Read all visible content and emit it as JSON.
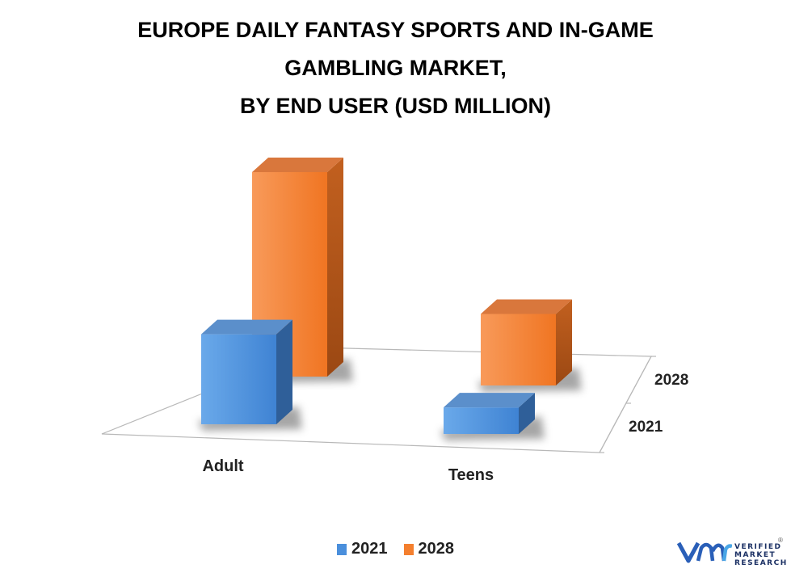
{
  "title_lines": [
    "EUROPE DAILY FANTASY SPORTS AND IN-GAME",
    "GAMBLING MARKET,",
    "BY END USER (USD MILLION)"
  ],
  "colors": {
    "2021": "#4a8fdc",
    "2028": "#f47f2e"
  },
  "chart_data": {
    "type": "bar",
    "title": "EUROPE DAILY FANTASY SPORTS AND IN-GAME GAMBLING MARKET, BY END USER (USD MILLION)",
    "categories": [
      "Adult",
      "Teens"
    ],
    "depth_labels": [
      "2028",
      "2021"
    ],
    "series": [
      {
        "name": "2021",
        "values": [
          44,
          13
        ]
      },
      {
        "name": "2028",
        "values": [
          100,
          35
        ]
      }
    ],
    "legend_position": "bottom",
    "grid": false
  },
  "legend": [
    {
      "label": "2021",
      "color": "#4a8fdc"
    },
    {
      "label": "2028",
      "color": "#f47f2e"
    }
  ],
  "logo": {
    "line1": "VERIFIED",
    "line2": "MARKET",
    "line3": "RESEARCH",
    "mark": "®"
  }
}
